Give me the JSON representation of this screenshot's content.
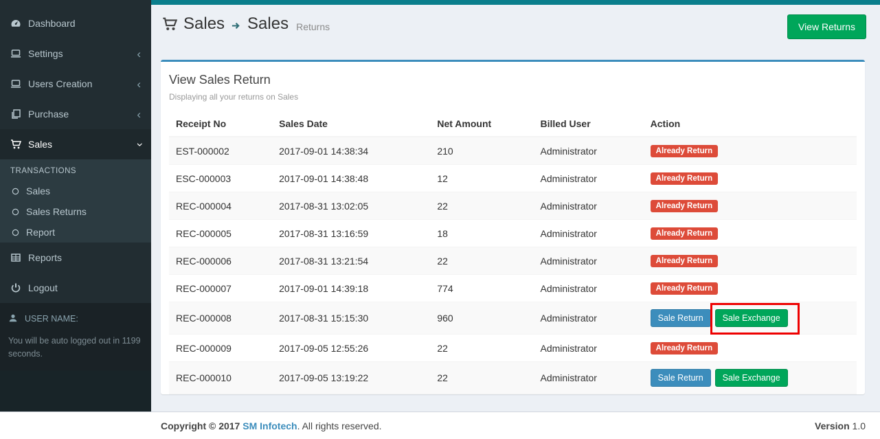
{
  "sidebar": {
    "items": [
      {
        "label": "Dashboard",
        "icon": "dashboard-icon"
      },
      {
        "label": "Settings",
        "icon": "settings-icon",
        "chevron": "left"
      },
      {
        "label": "Users Creation",
        "icon": "users-creation-icon",
        "chevron": "left"
      },
      {
        "label": "Purchase",
        "icon": "purchase-icon",
        "chevron": "left"
      },
      {
        "label": "Sales",
        "icon": "sales-cart-icon",
        "chevron": "down",
        "active": true
      }
    ],
    "section_header": "TRANSACTIONS",
    "sub_items": [
      {
        "label": "Sales",
        "icon": "circle-icon"
      },
      {
        "label": "Sales Returns",
        "icon": "circle-icon"
      },
      {
        "label": "Report",
        "icon": "circle-icon"
      }
    ],
    "bottom_items": [
      {
        "label": "Reports",
        "icon": "reports-table-icon"
      },
      {
        "label": "Logout",
        "icon": "power-icon"
      }
    ],
    "user_label": "USER NAME:",
    "auto_logout_note": "You will be auto logged out in 1199 seconds."
  },
  "header": {
    "breadcrumb": {
      "section": "Sales",
      "page": "Sales",
      "page_sub": "Returns"
    },
    "view_returns_button": "View Returns"
  },
  "box": {
    "title": "View Sales Return",
    "subtitle": "Displaying all your returns on Sales"
  },
  "table": {
    "columns": [
      "Receipt No",
      "Sales Date",
      "Net Amount",
      "Billed User",
      "Action"
    ],
    "rows": [
      {
        "receipt_no": "EST-000002",
        "sales_date": "2017-09-01 14:38:34",
        "net_amount": "210",
        "billed_user": "Administrator",
        "actions": [
          {
            "type": "already-return",
            "label": "Already Return"
          }
        ]
      },
      {
        "receipt_no": "ESC-000003",
        "sales_date": "2017-09-01 14:38:48",
        "net_amount": "12",
        "billed_user": "Administrator",
        "actions": [
          {
            "type": "already-return",
            "label": "Already Return"
          }
        ]
      },
      {
        "receipt_no": "REC-000004",
        "sales_date": "2017-08-31 13:02:05",
        "net_amount": "22",
        "billed_user": "Administrator",
        "actions": [
          {
            "type": "already-return",
            "label": "Already Return"
          }
        ]
      },
      {
        "receipt_no": "REC-000005",
        "sales_date": "2017-08-31 13:16:59",
        "net_amount": "18",
        "billed_user": "Administrator",
        "actions": [
          {
            "type": "already-return",
            "label": "Already Return"
          }
        ]
      },
      {
        "receipt_no": "REC-000006",
        "sales_date": "2017-08-31 13:21:54",
        "net_amount": "22",
        "billed_user": "Administrator",
        "actions": [
          {
            "type": "already-return",
            "label": "Already Return"
          }
        ]
      },
      {
        "receipt_no": "REC-000007",
        "sales_date": "2017-09-01 14:39:18",
        "net_amount": "774",
        "billed_user": "Administrator",
        "actions": [
          {
            "type": "already-return",
            "label": "Already Return"
          }
        ]
      },
      {
        "receipt_no": "REC-000008",
        "sales_date": "2017-08-31 15:15:30",
        "net_amount": "960",
        "billed_user": "Administrator",
        "actions": [
          {
            "type": "sale-return",
            "label": "Sale Return"
          },
          {
            "type": "sale-exchange",
            "label": "Sale Exchange",
            "highlighted": true
          }
        ]
      },
      {
        "receipt_no": "REC-000009",
        "sales_date": "2017-09-05 12:55:26",
        "net_amount": "22",
        "billed_user": "Administrator",
        "actions": [
          {
            "type": "already-return",
            "label": "Already Return"
          }
        ]
      },
      {
        "receipt_no": "REC-000010",
        "sales_date": "2017-09-05 13:19:22",
        "net_amount": "22",
        "billed_user": "Administrator",
        "actions": [
          {
            "type": "sale-return",
            "label": "Sale Return"
          },
          {
            "type": "sale-exchange",
            "label": "Sale Exchange"
          }
        ]
      }
    ]
  },
  "footer": {
    "copyright_prefix": "Copyright © 2017",
    "company": "SM Infotech",
    "copyright_suffix": ". All rights reserved.",
    "version_label": "Version",
    "version_value": "1.0"
  },
  "colors": {
    "top_strip_teal": "#0a7e8c",
    "primary_blue": "#3c8dbc",
    "success_green": "#00a65a",
    "danger_red": "#dd4b39",
    "sidebar_bg": "#222d32",
    "sidebar_active_bg": "#1e282c",
    "content_bg": "#ecf0f5",
    "annotation_red": "#ee0000"
  }
}
